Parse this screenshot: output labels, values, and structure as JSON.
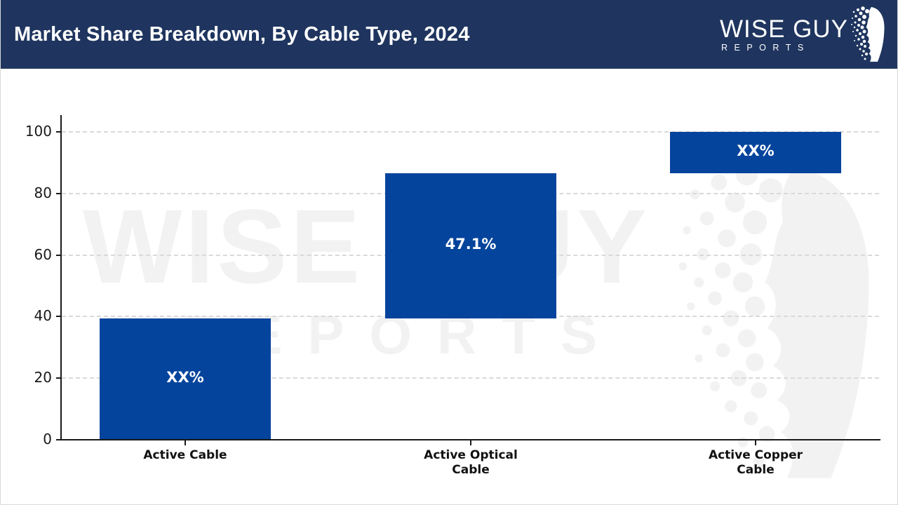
{
  "header": {
    "title": "Market Share Breakdown, By Cable Type, 2024",
    "logo": {
      "wordmark": "WISE GUY",
      "subtitle": "REPORTS"
    }
  },
  "watermark": {
    "line1": "WISE GUY",
    "line2": "REPORTS"
  },
  "colors": {
    "header_bg": "#1f355f",
    "bar": "#05449c",
    "bar_label": "#ffffff",
    "grid": "#d9d9d9",
    "axis": "#1a1a1a",
    "tick_label": "#1a1a1a",
    "category_label": "#111111",
    "watermark": "#f2f2f3"
  },
  "chart_data": {
    "type": "bar",
    "subtype": "waterfall",
    "title": "Market Share Breakdown, By Cable Type, 2024",
    "xlabel": "",
    "ylabel": "",
    "ylim": [
      0,
      100
    ],
    "yticks": [
      0,
      20,
      40,
      60,
      80,
      100
    ],
    "grid": "dashed-horizontal",
    "legend": "none",
    "categories": [
      "Active Cable",
      "Active Optical Cable",
      "Active Copper Cable"
    ],
    "segments": [
      {
        "category": "Active Cable",
        "start": 0,
        "end": 39.5,
        "value": 39.5,
        "label": "XX%"
      },
      {
        "category": "Active Optical Cable",
        "start": 39.5,
        "end": 86.6,
        "value": 47.1,
        "label": "47.1%"
      },
      {
        "category": "Active Copper Cable",
        "start": 86.6,
        "end": 100,
        "value": 13.4,
        "label": "XX%"
      }
    ]
  }
}
